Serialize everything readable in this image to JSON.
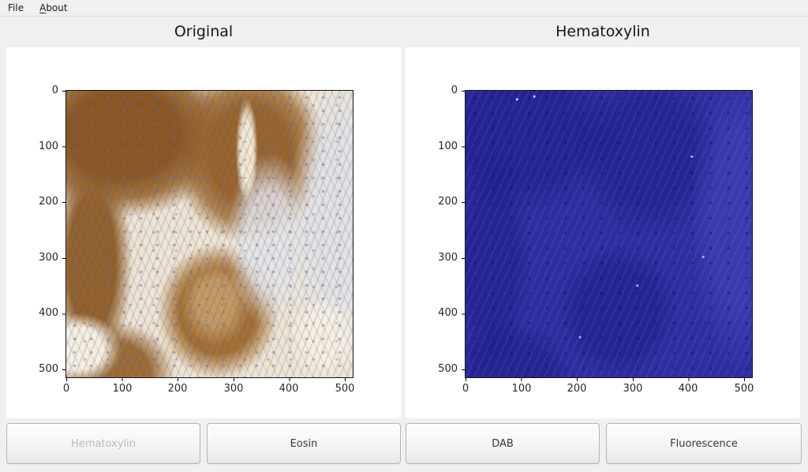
{
  "menubar": {
    "file_label": "File",
    "about_prefix": "A",
    "about_rest": "bout"
  },
  "figures": {
    "left": {
      "title": "Original"
    },
    "right": {
      "title": "Hematoxylin"
    }
  },
  "axes": {
    "ticks": [
      "0",
      "100",
      "200",
      "300",
      "400",
      "500"
    ]
  },
  "buttons": {
    "hematoxylin": {
      "label": "Hematoxylin",
      "disabled": true
    },
    "eosin": {
      "label": "Eosin",
      "disabled": false
    },
    "dab": {
      "label": "DAB",
      "disabled": false
    },
    "fluorescence": {
      "label": "Fluorescence",
      "disabled": false
    }
  },
  "colors": {
    "window_bg": "#f0f0f0",
    "panel_bg": "#ffffff",
    "hematoxylin_blue": "#2e2ea0",
    "dab_brown": "#8a5827",
    "tissue_cream": "#ebe6da",
    "nuclei_blue_grey": "#606ea5",
    "disabled_text": "#b9b9b9",
    "button_border": "#b5b5b5"
  }
}
